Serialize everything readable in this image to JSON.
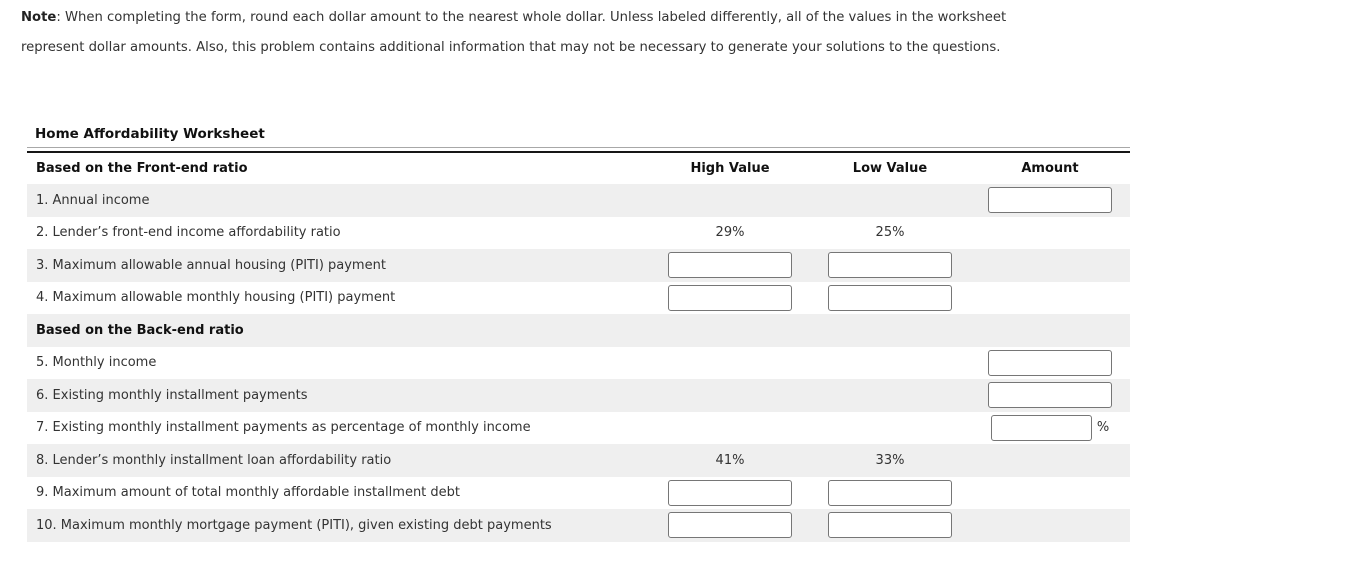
{
  "note": {
    "bold_label": "Note",
    "line1_rest": ": When completing the form, round each dollar amount to the nearest whole dollar. Unless labeled differently, all of the values in the worksheet",
    "line2": "represent dollar amounts. Also, this problem contains additional information that may not be necessary to generate your solutions to the questions."
  },
  "worksheet": {
    "title": "Home Affordability Worksheet",
    "front_section_label": "Based on the Front-end ratio",
    "columns": {
      "high": "High Value",
      "low": "Low Value",
      "amount": "Amount"
    },
    "rows": [
      {
        "label": "1. Annual income"
      },
      {
        "label": "2. Lender’s front-end income affordability ratio",
        "high": "29%",
        "low": "25%"
      },
      {
        "label": "3. Maximum allowable annual housing (PITI) payment"
      },
      {
        "label": "4. Maximum allowable monthly housing (PITI) payment"
      },
      {
        "label": "Based on the Back-end ratio"
      },
      {
        "label": "5. Monthly income"
      },
      {
        "label": "6. Existing monthly installment payments"
      },
      {
        "label": "7. Existing monthly installment payments as percentage of monthly income",
        "amount_suffix": "%"
      },
      {
        "label": "8. Lender’s monthly installment loan affordability ratio",
        "high": "41%",
        "low": "33%"
      },
      {
        "label": "9. Maximum amount of total monthly affordable installment debt"
      },
      {
        "label": "10. Maximum monthly mortgage payment (PITI), given existing debt payments"
      }
    ],
    "colors": {
      "shaded_row": "#efefef",
      "input_border": "#767676",
      "body_text": "#333333"
    }
  }
}
